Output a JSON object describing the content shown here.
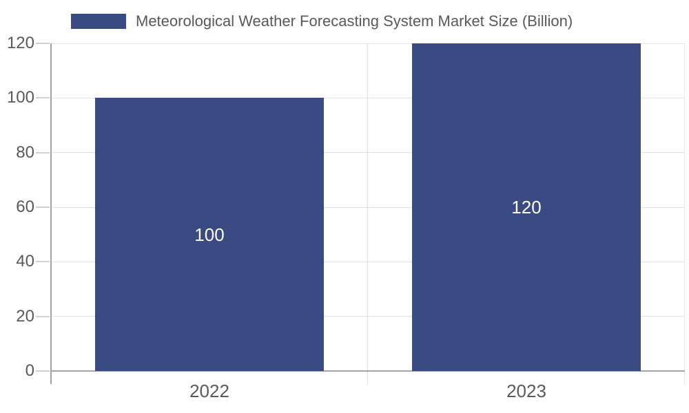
{
  "chart_data": {
    "type": "bar",
    "title": "Meteorological Weather Forecasting System Market Size (Billion)",
    "categories": [
      "2022",
      "2023"
    ],
    "values": [
      100,
      120
    ],
    "series": [
      {
        "name": "Meteorological Weather Forecasting System Market Size (Billion)",
        "values": [
          100,
          120
        ]
      }
    ],
    "bar_value_labels": [
      "100",
      "120"
    ],
    "xlabel": "",
    "ylabel": "",
    "ylim": [
      0,
      120
    ],
    "yticks": [
      0,
      20,
      40,
      60,
      80,
      100,
      120
    ],
    "grid": true,
    "legend_position": "top-left",
    "colors": {
      "bar": "#3A4A82",
      "title_text": "#595959",
      "tick_text": "#595959",
      "axis_line": "#A3A3A3",
      "gridline": "#E2E2E2",
      "tick_mark": "#CFCFCF",
      "value_label": "#FFFFFF",
      "background": "#FFFFFF"
    }
  }
}
